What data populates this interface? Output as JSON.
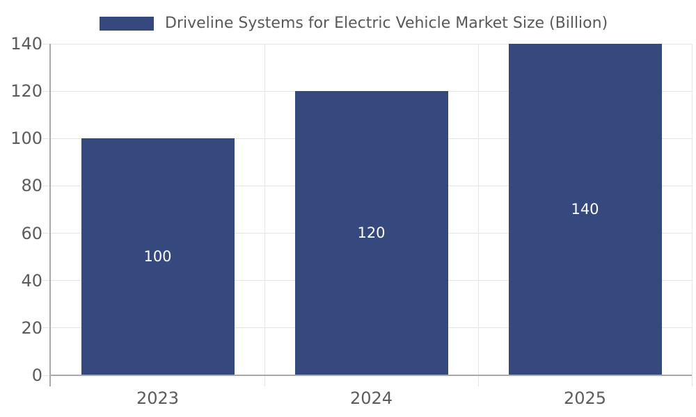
{
  "figure": {
    "legend": {
      "label": "Driveline Systems for Electric Vehicle Market Size (Billion)"
    }
  },
  "chart_data": {
    "type": "bar",
    "title": "Driveline Systems for Electric Vehicle Market Size (Billion)",
    "categories": [
      "2023",
      "2024",
      "2025"
    ],
    "values": [
      100,
      120,
      140
    ],
    "bar_labels": [
      "100",
      "120",
      "140"
    ],
    "xlabel": "",
    "ylabel": "",
    "ylim": [
      0,
      140
    ],
    "yticks": [
      0,
      20,
      40,
      60,
      80,
      100,
      120,
      140
    ],
    "grid": true,
    "legend_position": "top",
    "colors": {
      "bar": "#36497e",
      "bar_label": "#ffffff",
      "grid": "#e4e4e4",
      "spine": "#a8a8a8",
      "tick_label": "#5b5b5b",
      "legend_text": "#58595b"
    }
  }
}
